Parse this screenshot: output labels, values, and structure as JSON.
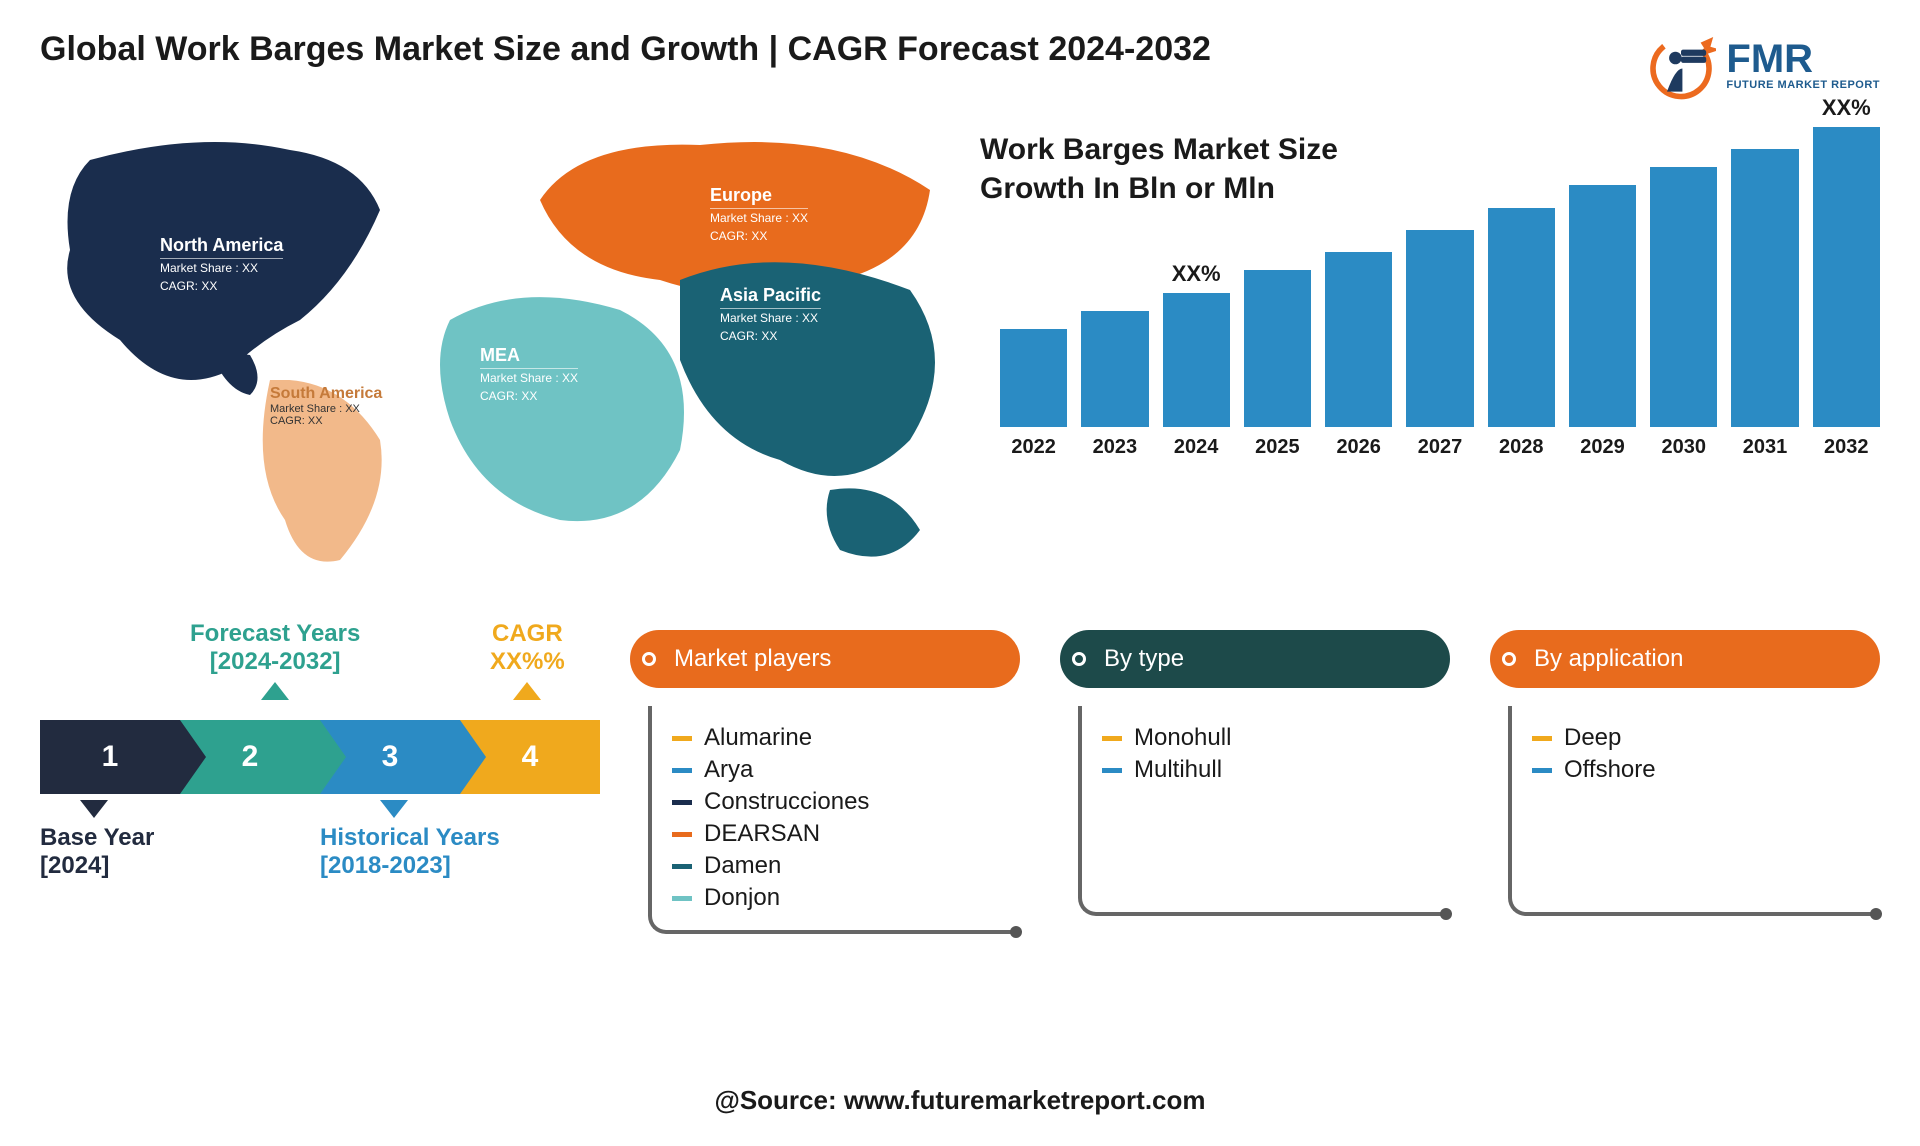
{
  "title": "Global Work Barges Market Size and Growth | CAGR Forecast 2024-2032",
  "logo": {
    "abbr": "FMR",
    "sub": "FUTURE MARKET REPORT",
    "icon_color": "#ec6a1f",
    "text_color": "#1e5b8e"
  },
  "map": {
    "regions": [
      {
        "name": "North America",
        "share": "Market Share : XX",
        "cagr": "CAGR: XX",
        "color": "#1a2d4d"
      },
      {
        "name": "South America",
        "share": "Market Share : XX",
        "cagr": "CAGR: XX",
        "color": "#f2b98a"
      },
      {
        "name": "Europe",
        "share": "Market Share : XX",
        "cagr": "CAGR: XX",
        "color": "#e86b1d"
      },
      {
        "name": "MEA",
        "share": "Market Share : XX",
        "cagr": "CAGR: XX",
        "color": "#6fc3c4"
      },
      {
        "name": "Asia Pacific",
        "share": "Market Share : XX",
        "cagr": "CAGR: XX",
        "color": "#1a6274"
      }
    ]
  },
  "chart": {
    "title": "Work Barges Market Size Growth In Bln or Mln",
    "bar_color": "#2b8bc4",
    "years": [
      "2022",
      "2023",
      "2024",
      "2025",
      "2026",
      "2027",
      "2028",
      "2029",
      "2030",
      "2031",
      "2032"
    ],
    "values": [
      110,
      130,
      150,
      175,
      195,
      220,
      245,
      270,
      290,
      310,
      335
    ],
    "max": 335,
    "annotations": [
      {
        "index": 2,
        "text": "XX%"
      },
      {
        "index": 10,
        "text": "XX%"
      }
    ],
    "label_fontsize": 20,
    "label_fontweight": 700
  },
  "timeline": {
    "steps": [
      {
        "n": "1",
        "color": "#222b3f"
      },
      {
        "n": "2",
        "color": "#2ea18f"
      },
      {
        "n": "3",
        "color": "#2b8bc4"
      },
      {
        "n": "4",
        "color": "#f0a91d"
      }
    ],
    "tags": {
      "forecast": {
        "title": "Forecast Years",
        "sub": "[2024-2032]",
        "color": "#2ea18f"
      },
      "cagr": {
        "title": "CAGR",
        "sub": "XX%%",
        "color": "#f0a91d"
      },
      "base": {
        "title": "Base Year",
        "sub": "[2024]",
        "color": "#222b3f"
      },
      "hist": {
        "title": "Historical Years",
        "sub": "[2018-2023]",
        "color": "#2b8bc4"
      }
    }
  },
  "pills": {
    "bullets": [
      "#f0a91d",
      "#2b8bc4",
      "#1a2d4d",
      "#e86b1d",
      "#1a6274",
      "#6fc3c4"
    ],
    "cols": [
      {
        "title": "Market players",
        "bg": "#e86b1d",
        "items": [
          "Alumarine",
          "Arya",
          "Construcciones",
          "DEARSAN",
          "Damen",
          "Donjon"
        ]
      },
      {
        "title": "By type",
        "bg": "#1d4a4a",
        "items": [
          "Monohull",
          "Multihull"
        ]
      },
      {
        "title": "By application",
        "bg": "#e86b1d",
        "items": [
          "Deep",
          "Offshore"
        ]
      }
    ]
  },
  "source": "@Source: www.futuremarketreport.com"
}
